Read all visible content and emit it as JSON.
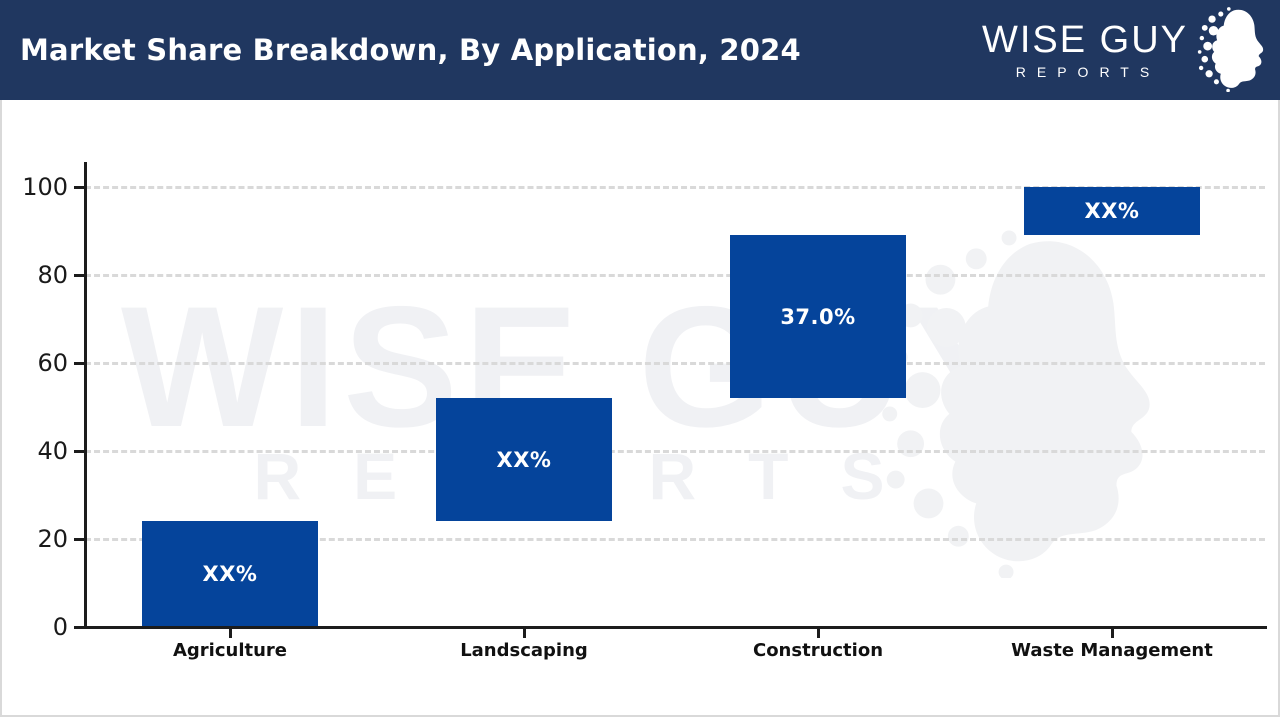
{
  "header": {
    "title": "Market Share Breakdown, By Application, 2024",
    "logo_line1": "WISE GUY",
    "logo_line2": "REPORTS"
  },
  "watermark": {
    "line1": "WISE GUY",
    "line2": "REPORTS"
  },
  "colors": {
    "header_bg": "#203760",
    "bar": "#05449b",
    "bar_label": "#ffffff",
    "grid": "#d9d9d9",
    "axis": "#1c1c1c",
    "watermark": "#f0f1f4"
  },
  "chart_data": {
    "type": "bar",
    "subtype": "waterfall",
    "title": "Market Share Breakdown, By Application, 2024",
    "xlabel": "",
    "ylabel": "",
    "ylim": [
      0,
      100
    ],
    "yticks": [
      0,
      20,
      40,
      60,
      80,
      100
    ],
    "grid": "horizontal dashed",
    "legend": "none",
    "bar_color": "#05449b",
    "categories": [
      "Agriculture",
      "Landscaping",
      "Construction",
      "Waste Management"
    ],
    "segments": [
      {
        "category": "Agriculture",
        "start": 0,
        "end": 24,
        "value": 24,
        "label": "XX%"
      },
      {
        "category": "Landscaping",
        "start": 24,
        "end": 52,
        "value": 28,
        "label": "XX%"
      },
      {
        "category": "Construction",
        "start": 52,
        "end": 89,
        "value": 37,
        "label": "37.0%"
      },
      {
        "category": "Waste Management",
        "start": 89,
        "end": 100,
        "value": 11,
        "label": "XX%"
      }
    ]
  }
}
